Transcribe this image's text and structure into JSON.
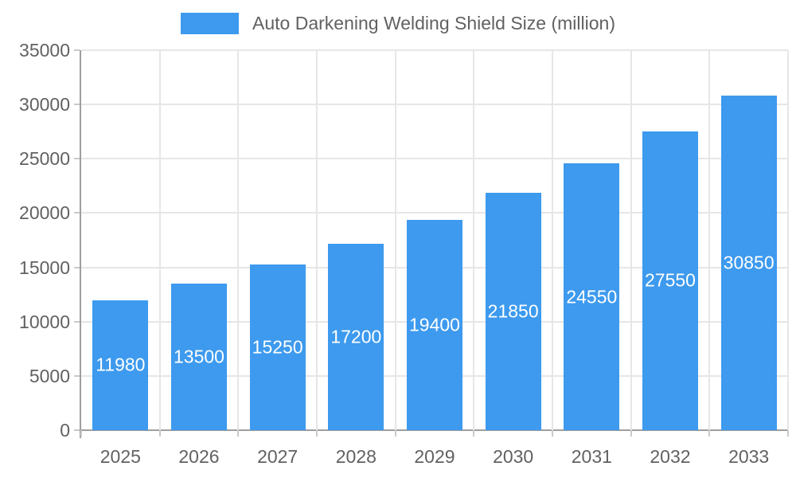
{
  "chart_data": {
    "type": "bar",
    "title": "",
    "categories": [
      "2025",
      "2026",
      "2027",
      "2028",
      "2029",
      "2030",
      "2031",
      "2032",
      "2033"
    ],
    "series": [
      {
        "name": "Auto Darkening Welding Shield Size (million)",
        "values": [
          11980,
          13500,
          15250,
          17200,
          19400,
          21850,
          24550,
          27550,
          30850
        ]
      }
    ],
    "bar_value_labels": [
      "11980",
      "13500",
      "15250",
      "17200",
      "19400",
      "21850",
      "24550",
      "27550",
      "30850"
    ],
    "xlabel": "",
    "ylabel": "",
    "ylim": [
      0,
      35000
    ],
    "yticks": [
      0,
      5000,
      10000,
      15000,
      20000,
      25000,
      30000,
      35000
    ],
    "ytick_labels": [
      "0",
      "5000",
      "10000",
      "15000",
      "20000",
      "25000",
      "30000",
      "35000"
    ],
    "grid": true,
    "legend_position": "top",
    "colors": {
      "bar": "#3D9AEE",
      "bar_value_text": "#FFFFFF",
      "axis_line": "#9E9E9E",
      "tick": "#C9C9C9",
      "gridline": "#E6E6E6",
      "text": "#616161",
      "background": "#FFFFFF"
    }
  }
}
